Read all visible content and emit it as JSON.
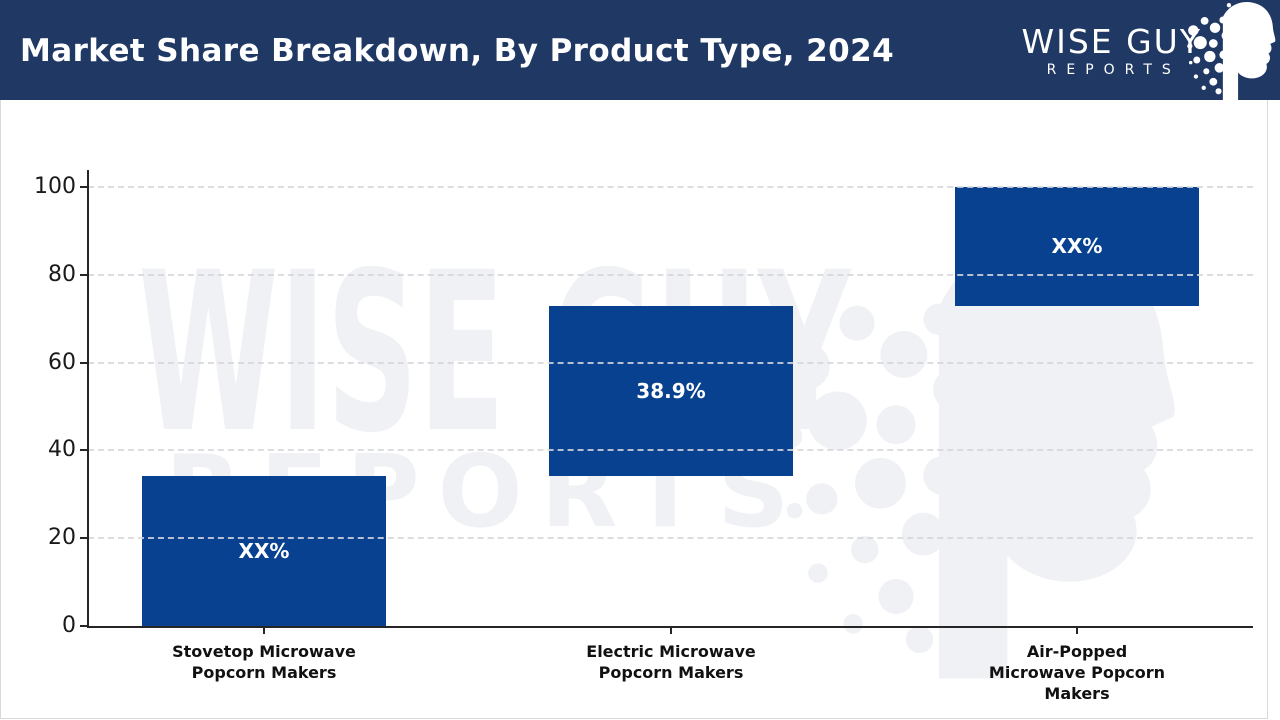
{
  "header": {
    "title": "Market Share Breakdown, By Product Type, 2024",
    "logo": {
      "line1": "WISE GUY",
      "line2": "REPORTS"
    }
  },
  "watermark": {
    "line1": "WISE GUY",
    "line2": "REPORTS"
  },
  "colors": {
    "header_bg": "#203864",
    "bar": "#07418f",
    "grid": "#d6d6dc",
    "axis": "#262626",
    "watermark": "#f0f1f4"
  },
  "chart_data": {
    "type": "bar",
    "subtype": "stacked-waterfall",
    "title": "Market Share Breakdown, By Product Type, 2024",
    "categories": [
      "Stovetop Microwave\nPopcorn Makers",
      "Electric Microwave\nPopcorn Makers",
      "Air-Popped\nMicrowave Popcorn\nMakers"
    ],
    "segments": [
      {
        "category": "Stovetop Microwave Popcorn Makers",
        "start": 0,
        "end": 34.1,
        "label": "XX%"
      },
      {
        "category": "Electric Microwave Popcorn Makers",
        "start": 34.1,
        "end": 73.0,
        "label": "38.9%"
      },
      {
        "category": "Air-Popped Microwave Popcorn Makers",
        "start": 73.0,
        "end": 100,
        "label": "XX%"
      }
    ],
    "ylabel": "",
    "xlabel": "",
    "yticks": [
      0,
      20,
      40,
      60,
      80,
      100
    ],
    "ylim": [
      0,
      105
    ],
    "grid": "dashed-horizontal",
    "legend": "none"
  }
}
